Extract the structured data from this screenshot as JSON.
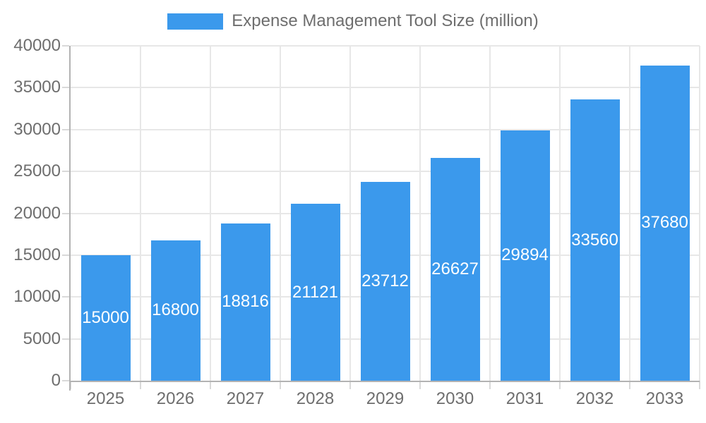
{
  "chart_data": {
    "type": "bar",
    "title": "Expense Management Tool Size (million)",
    "legend_entries": [
      "Expense Management Tool Size (million)"
    ],
    "legend_position": "top",
    "categories": [
      "2025",
      "2026",
      "2027",
      "2028",
      "2029",
      "2030",
      "2031",
      "2032",
      "2033"
    ],
    "values": [
      15000,
      16800,
      18816,
      21121,
      23712,
      26627,
      29894,
      33560,
      37680
    ],
    "data_labels_position": "inside-center",
    "xlabel": "",
    "ylabel": "",
    "ylim": [
      0,
      40000
    ],
    "ytick_step": 5000,
    "yticks": [
      0,
      5000,
      10000,
      15000,
      20000,
      25000,
      30000,
      35000,
      40000
    ],
    "grid": true,
    "colors": {
      "bar": "#3b99ec",
      "value_label": "#ffffff",
      "axis_text": "#6e6e6e",
      "legend_text": "#6e6e6e",
      "gridline": "#e7e7e7",
      "tick_mark": "#d9d9d9",
      "axis_line": "#b3b3b3"
    }
  }
}
